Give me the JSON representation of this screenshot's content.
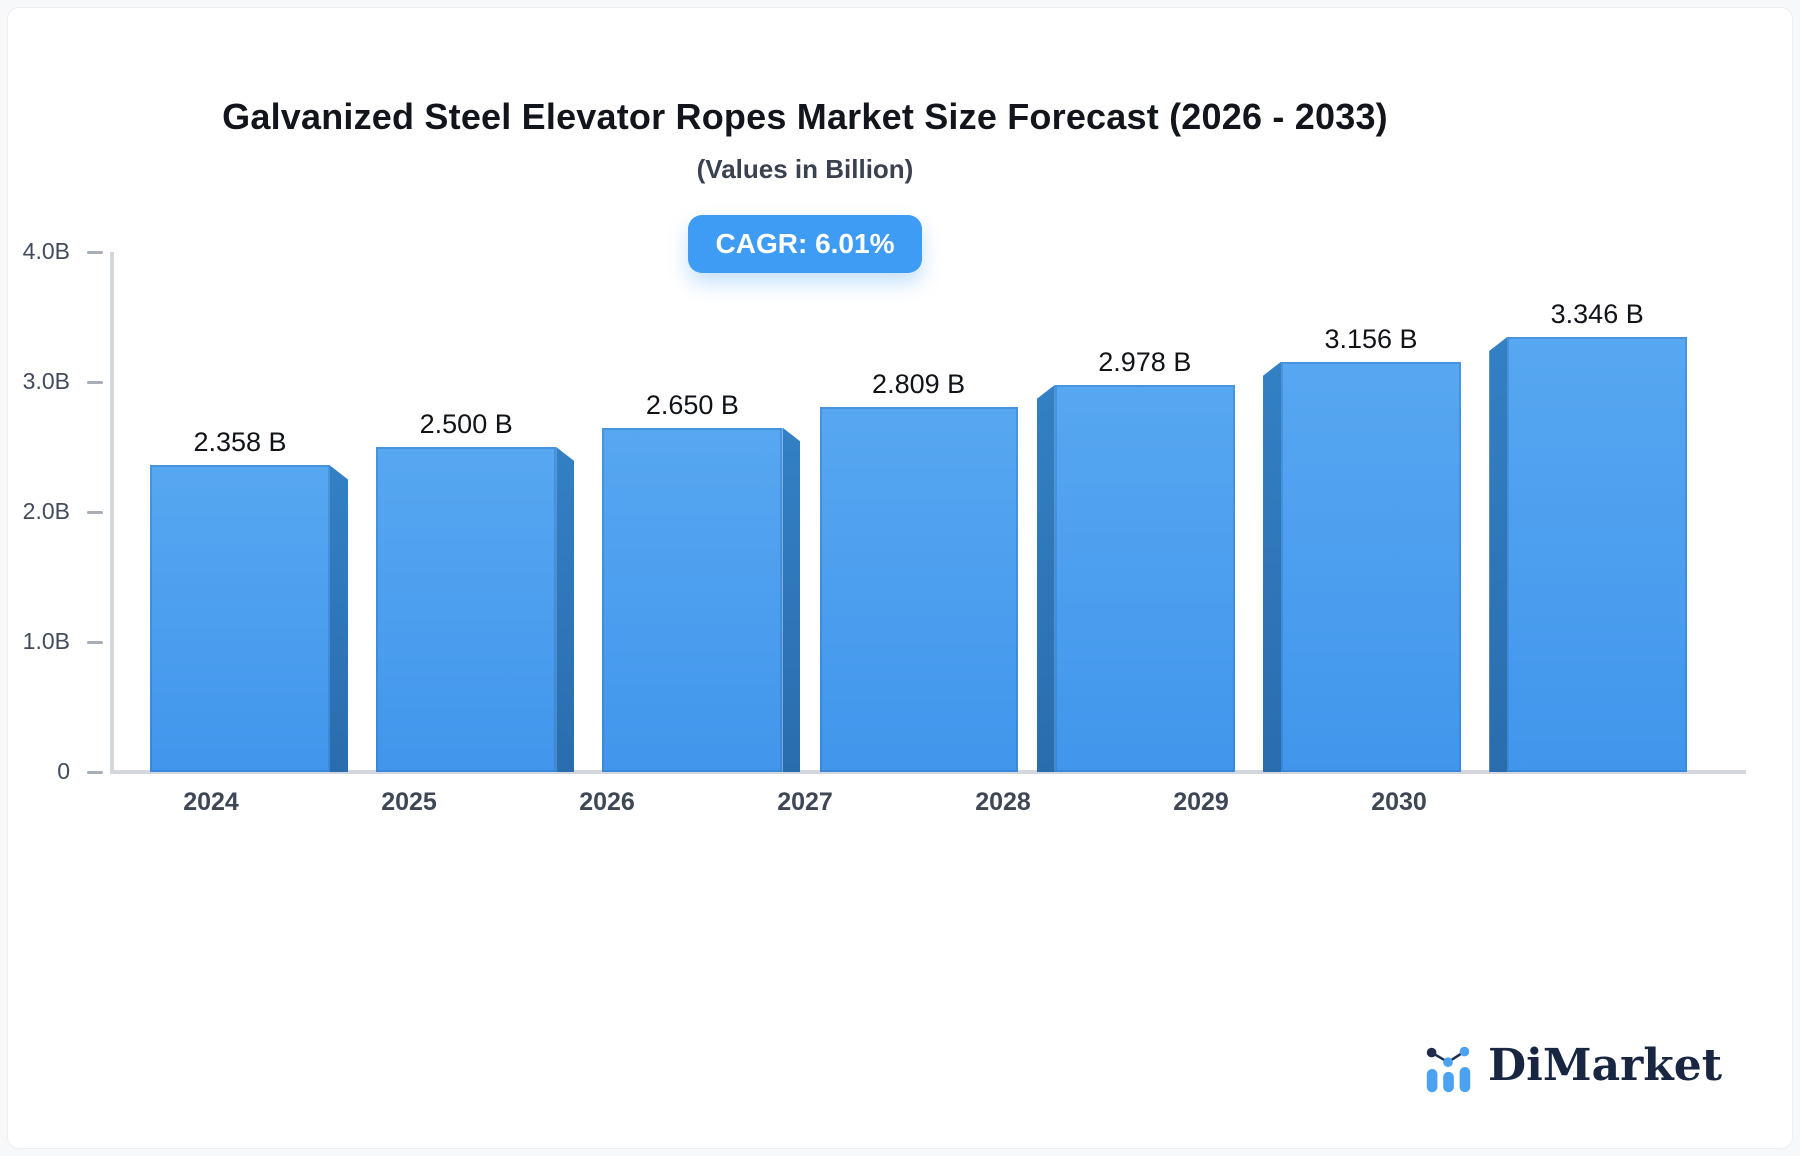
{
  "header": {
    "title": "Galvanized Steel Elevator Ropes Market Size Forecast (2026 - 2033)",
    "subtitle": "(Values in Billion)",
    "cagr_label": "CAGR: 6.01%"
  },
  "chart_data": {
    "type": "bar",
    "title": "Galvanized Steel Elevator Ropes Market Size Forecast (2026 - 2033)",
    "subtitle": "(Values in Billion)",
    "cagr_pct": 6.01,
    "categories": [
      "2024",
      "2025",
      "2026",
      "2027",
      "2028",
      "2029",
      "2030"
    ],
    "values": [
      2.358,
      2.5,
      2.65,
      2.809,
      2.978,
      3.156,
      3.346
    ],
    "bar_labels": [
      "2.358 B",
      "2.500 B",
      "2.650 B",
      "2.809 B",
      "2.978 B",
      "3.156 B",
      "3.346 B"
    ],
    "ylim": [
      0,
      4.0
    ],
    "y_ticks": [
      {
        "label": "4.0B",
        "value": 4.0
      },
      {
        "label": "3.0B",
        "value": 3.0
      },
      {
        "label": "2.0B",
        "value": 2.0
      },
      {
        "label": "1.0B",
        "value": 1.0
      },
      {
        "label": "0",
        "value": 0
      }
    ],
    "grid": false,
    "legend": false,
    "bar_color": "#4FA2EF",
    "bar_side_color": "#2E76BA"
  },
  "branding": {
    "logo_text": "DiMarket"
  },
  "colors": {
    "accent_blue": "#3E9CF4",
    "axis_line": "#D3D7DD",
    "text_dark": "#12161C",
    "label_slate": "#3E4756",
    "background": "#F7F8FA",
    "logo_navy": "#182641",
    "logo_blue": "#4BA1F2"
  }
}
